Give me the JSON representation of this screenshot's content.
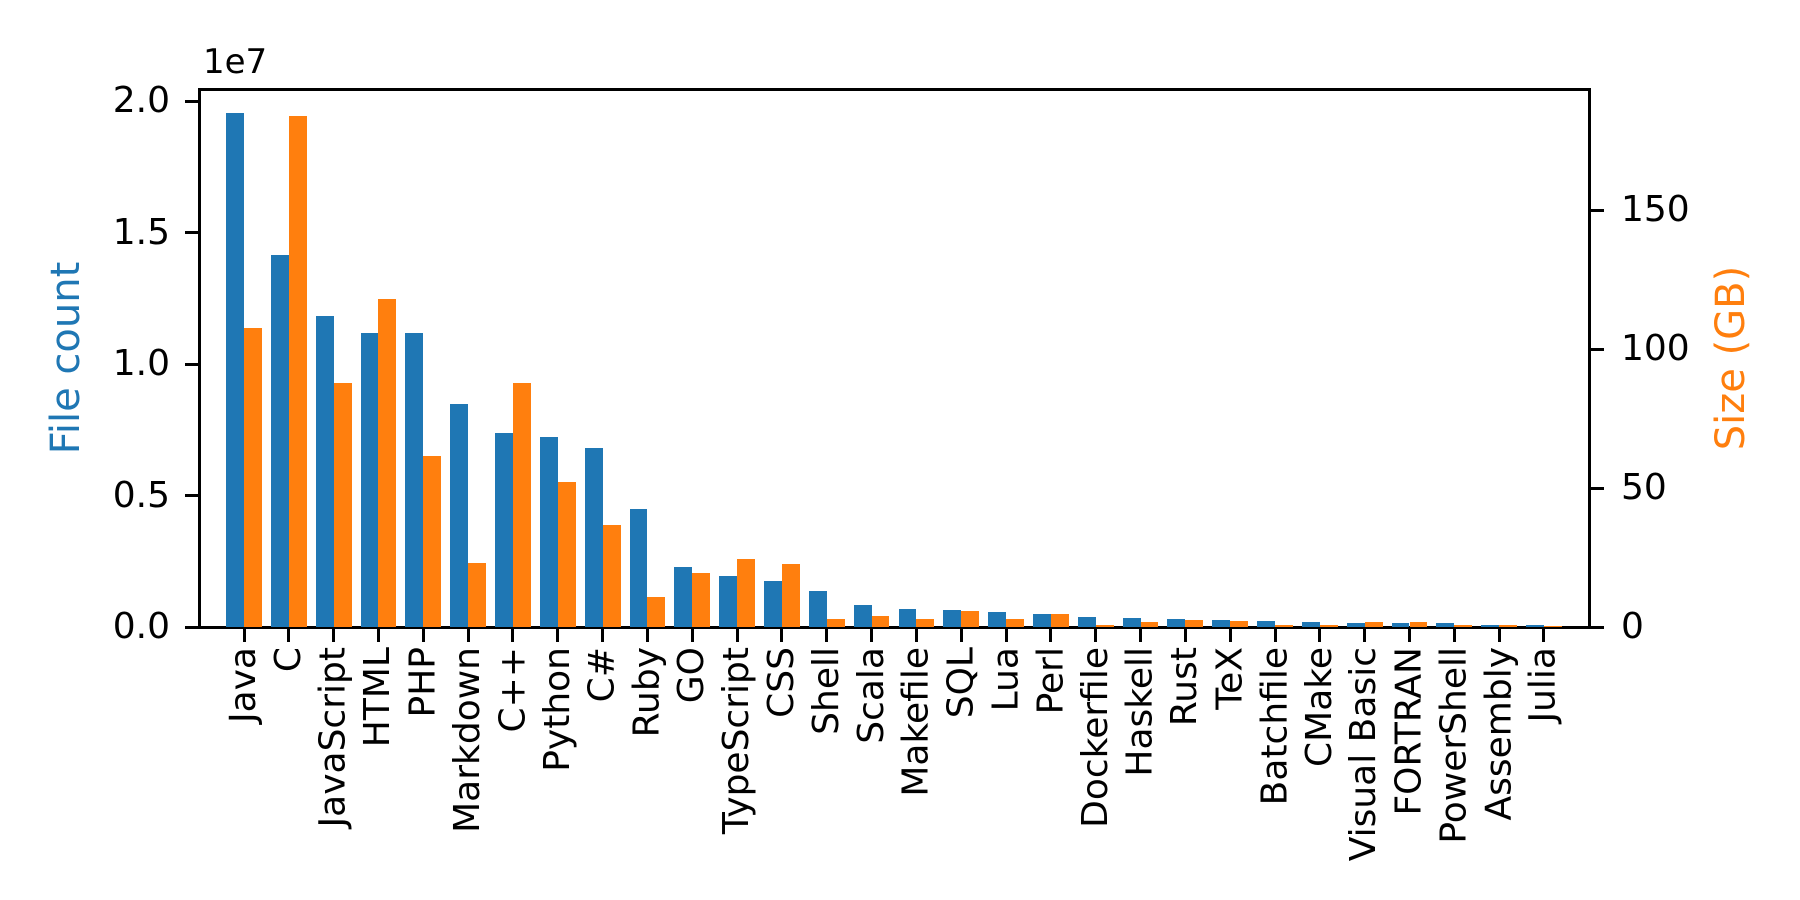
{
  "chart_data": {
    "type": "bar",
    "title": "",
    "grid": false,
    "legend": false,
    "categories": [
      "Java",
      "C",
      "JavaScript",
      "HTML",
      "PHP",
      "Markdown",
      "C++",
      "Python",
      "C#",
      "Ruby",
      "GO",
      "TypeScript",
      "CSS",
      "Shell",
      "Scala",
      "Makefile",
      "SQL",
      "Lua",
      "Perl",
      "Dockerfile",
      "Haskell",
      "Rust",
      "TeX",
      "Batchfile",
      "CMake",
      "Visual Basic",
      "FORTRAN",
      "PowerShell",
      "Assembly",
      "Julia"
    ],
    "series": [
      {
        "name": "File count",
        "axis": "left",
        "color": "#1f77b4",
        "values": [
          19548190,
          14143113,
          11839883,
          11178557,
          11177610,
          8464626,
          7380520,
          7226626,
          6811652,
          4473331,
          2265436,
          1940406,
          1734406,
          1385648,
          835755,
          679430,
          656671,
          578554,
          497949,
          366505,
          340623,
          322431,
          251015,
          236945,
          175282,
          155652,
          142038,
          136846,
          82905,
          58317
        ]
      },
      {
        "name": "Size (GB)",
        "axis": "right",
        "color": "#ff7f0e",
        "values": [
          107.7,
          183.83,
          87.82,
          118.12,
          61.41,
          23.09,
          87.73,
          52.03,
          36.83,
          10.95,
          19.28,
          24.59,
          22.67,
          3.01,
          3.87,
          2.92,
          5.67,
          2.81,
          4.7,
          0.71,
          1.85,
          2.68,
          2.15,
          0.7,
          0.54,
          1.91,
          1.62,
          0.69,
          0.78,
          0.29
        ]
      }
    ],
    "left_axis": {
      "label": "File count",
      "color": "#1f77b4",
      "offset_text": "1e7",
      "tick_values": [
        0,
        5000000,
        10000000,
        15000000,
        20000000
      ],
      "tick_labels": [
        "0.0",
        "0.5",
        "1.0",
        "1.5",
        "2.0"
      ],
      "ylim": [
        0,
        20420000
      ]
    },
    "right_axis": {
      "label": "Size (GB)",
      "color": "#ff7f0e",
      "tick_values": [
        0,
        50,
        100,
        150
      ],
      "tick_labels": [
        "0",
        "50",
        "100",
        "150"
      ],
      "ylim": [
        0,
        193.2
      ]
    }
  }
}
